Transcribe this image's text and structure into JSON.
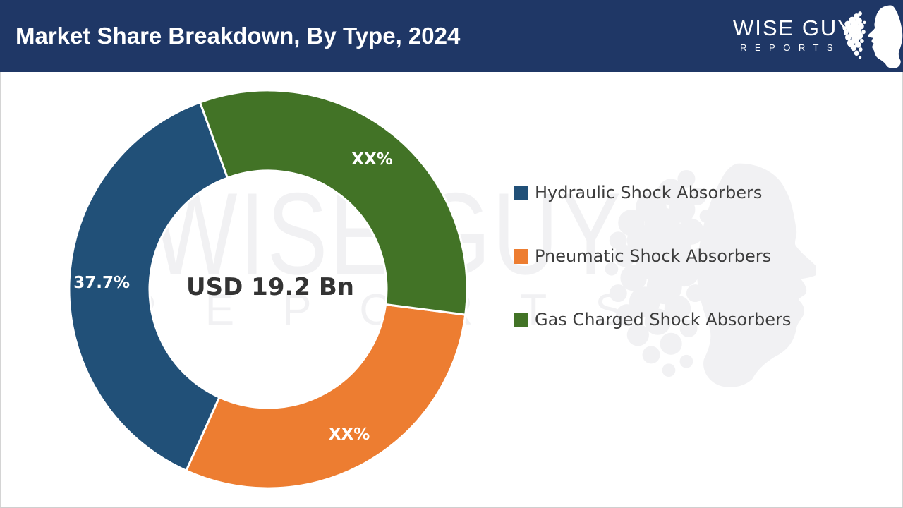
{
  "header": {
    "title": "Market Share Breakdown, By Type, 2024",
    "bg_color": "#1f3766",
    "logo": {
      "wordmark": "WISE GUY",
      "subtext": "REPORTS"
    }
  },
  "watermark": {
    "wordmark": "WISE GUY",
    "subtext": "REPORTS"
  },
  "chart_data": {
    "type": "pie",
    "subtype": "donut",
    "title": "Market Share Breakdown, By Type, 2024",
    "center_label": "USD 19.2 Bn",
    "start_angle_deg": 110,
    "direction": "counterclockwise",
    "legend_position": "right",
    "segments": [
      {
        "name": "Hydraulic Shock Absorbers",
        "value_pct": 37.7,
        "display_label": "37.7%",
        "color": "#215078"
      },
      {
        "name": "Pneumatic Shock Absorbers",
        "value_pct": 29.7,
        "display_label": "XX%",
        "color": "#ed7d31"
      },
      {
        "name": "Gas Charged Shock Absorbers",
        "value_pct": 32.6,
        "display_label": "XX%",
        "color": "#427326"
      }
    ]
  },
  "colors": {
    "header_navy": "#1f3766",
    "watermark_gray": "#f1f1f3",
    "legend_text": "#3d3d3d",
    "center_text": "#333333",
    "border_gray": "#d4d4d4"
  }
}
